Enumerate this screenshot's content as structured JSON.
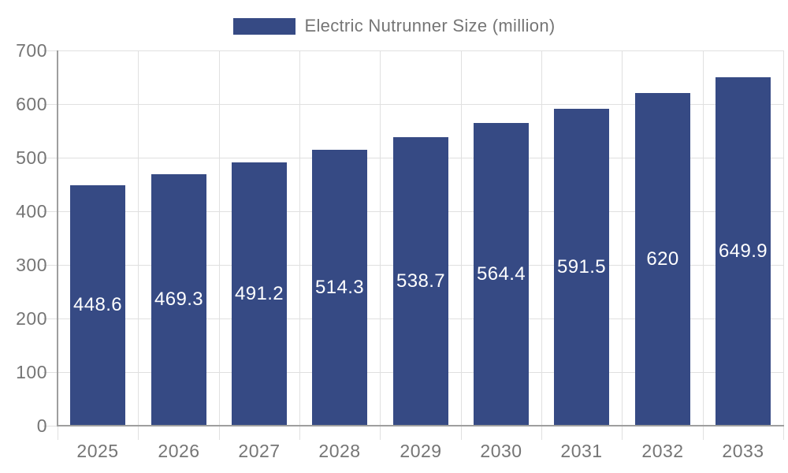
{
  "legend": {
    "label": "Electric Nutrunner Size (million)"
  },
  "chart_data": {
    "type": "bar",
    "title": "Electric Nutrunner Size (million)",
    "categories": [
      "2025",
      "2026",
      "2027",
      "2028",
      "2029",
      "2030",
      "2031",
      "2032",
      "2033"
    ],
    "values": [
      448.6,
      469.3,
      491.2,
      514.3,
      538.7,
      564.4,
      591.5,
      620,
      649.9
    ],
    "value_labels": [
      "448.6",
      "469.3",
      "491.2",
      "514.3",
      "538.7",
      "564.4",
      "591.5",
      "620",
      "649.9"
    ],
    "xlabel": "",
    "ylabel": "",
    "ylim": [
      0,
      700
    ],
    "yticks": [
      0,
      100,
      200,
      300,
      400,
      500,
      600,
      700
    ],
    "grid": "horizontal and vertical gridlines on, ticks extend outside axes",
    "legend_position": "top-center",
    "colors": {
      "bar": "#364a84",
      "axis_line": "#9e9e9e",
      "gridline": "#e0e0e0",
      "tick_label": "#757575",
      "legend_text": "#757575",
      "value_label": "#ffffff",
      "background": "#ffffff"
    }
  }
}
